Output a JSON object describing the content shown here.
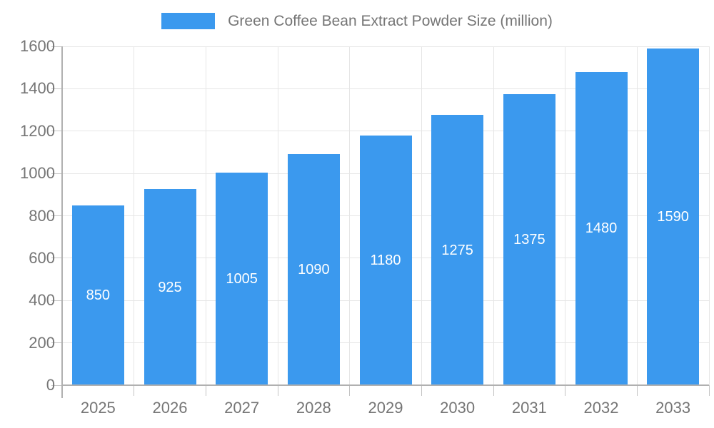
{
  "chart_data": {
    "type": "bar",
    "title": "Green Coffee Bean Extract Powder Size (million)",
    "legend": [
      "Green Coffee Bean Extract Powder Size (million)"
    ],
    "legend_position": "top-center",
    "categories": [
      "2025",
      "2026",
      "2027",
      "2028",
      "2029",
      "2030",
      "2031",
      "2032",
      "2033"
    ],
    "values": [
      850,
      925,
      1005,
      1090,
      1180,
      1275,
      1375,
      1480,
      1590
    ],
    "xlabel": "",
    "ylabel": "",
    "ylim": [
      0,
      1600
    ],
    "ytick_step": 200,
    "grid": true,
    "colors": {
      "bar_fill": "#3b99ee",
      "bar_value_label": "#ffffff",
      "axis_text": "#757575",
      "legend_text": "#757575",
      "gridline": "#e6e6e6",
      "axis_line": "#b0b0b0",
      "tick_mark": "#c4c4c4",
      "background": "#ffffff"
    }
  }
}
